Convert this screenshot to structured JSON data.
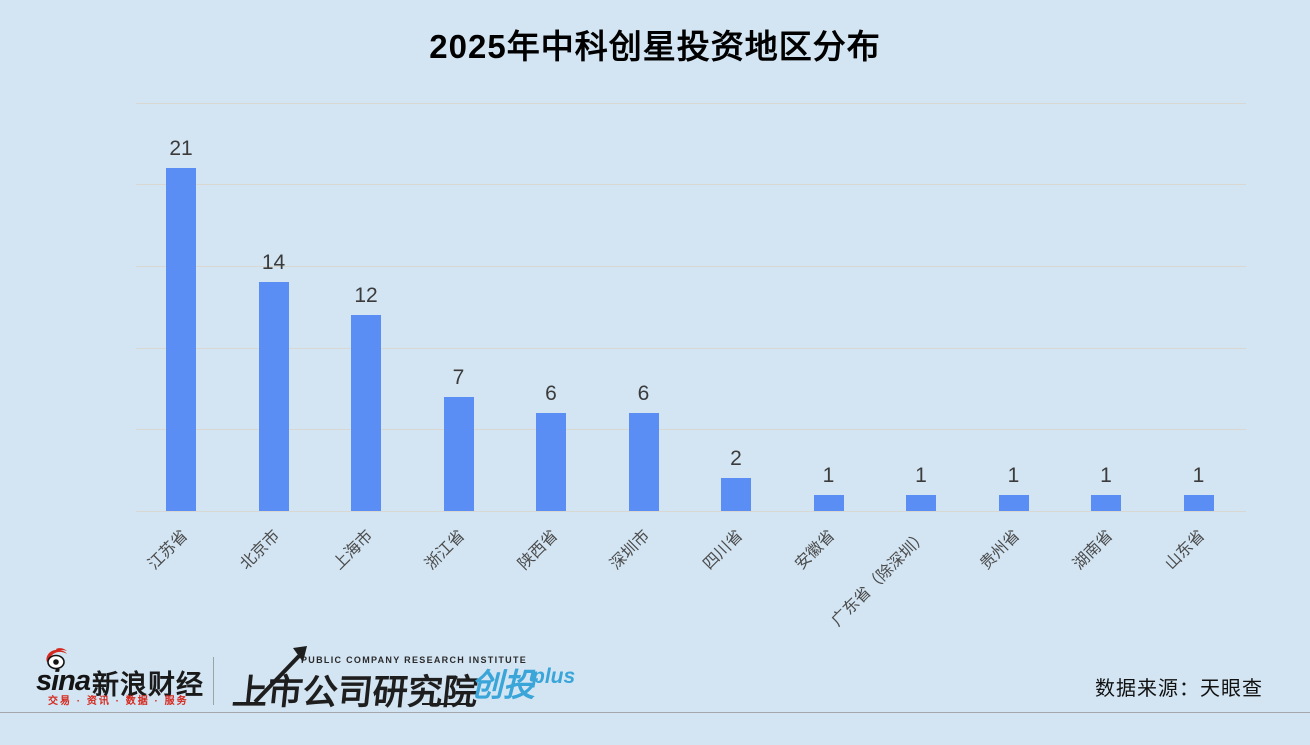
{
  "title": "2025年中科创星投资地区分布",
  "chart_data": {
    "type": "bar",
    "title": "2025年中科创星投资地区分布",
    "categories": [
      "江苏省",
      "北京市",
      "上海市",
      "浙江省",
      "陕西省",
      "深圳市",
      "四川省",
      "安徽省",
      "广东省（除深圳）",
      "贵州省",
      "湖南省",
      "山东省"
    ],
    "values": [
      21,
      14,
      12,
      7,
      6,
      6,
      2,
      1,
      1,
      1,
      1,
      1
    ],
    "xlabel": "",
    "ylabel": "",
    "ylim": [
      0,
      25
    ],
    "gridline_values": [
      0,
      5,
      10,
      15,
      20,
      25
    ],
    "grid": "on",
    "y_tick_labels": "hidden",
    "value_labels": "on",
    "x_label_rotation": 45,
    "legend": "none",
    "bar_color": "#5b8ef5"
  },
  "footer": {
    "sina_brand": "sina",
    "sina_name": "新浪财经",
    "sina_tagline": "交易 · 资讯 · 数据 · 服务",
    "institute_en": "PUBLIC COMPANY RESEARCH INSTITUTE",
    "institute_cn": "上市公司研究院",
    "plus_cn": "创投",
    "plus_sup": "plus",
    "source": "数据来源：天眼查"
  },
  "icons": {
    "sina_eye": "sina-eye-flame-icon",
    "institute_arrow": "up-trend-arrow-icon"
  },
  "colors": {
    "background": "#d3e5f3",
    "bar": "#5b8ef5",
    "gridline": "#d9d7d2",
    "value_label": "#3b3b3b",
    "axis_label": "#4b4b4b",
    "sina_red": "#d5281e",
    "plus_cyan": "#3aa5d8",
    "footer_line": "#a4a8ac"
  }
}
